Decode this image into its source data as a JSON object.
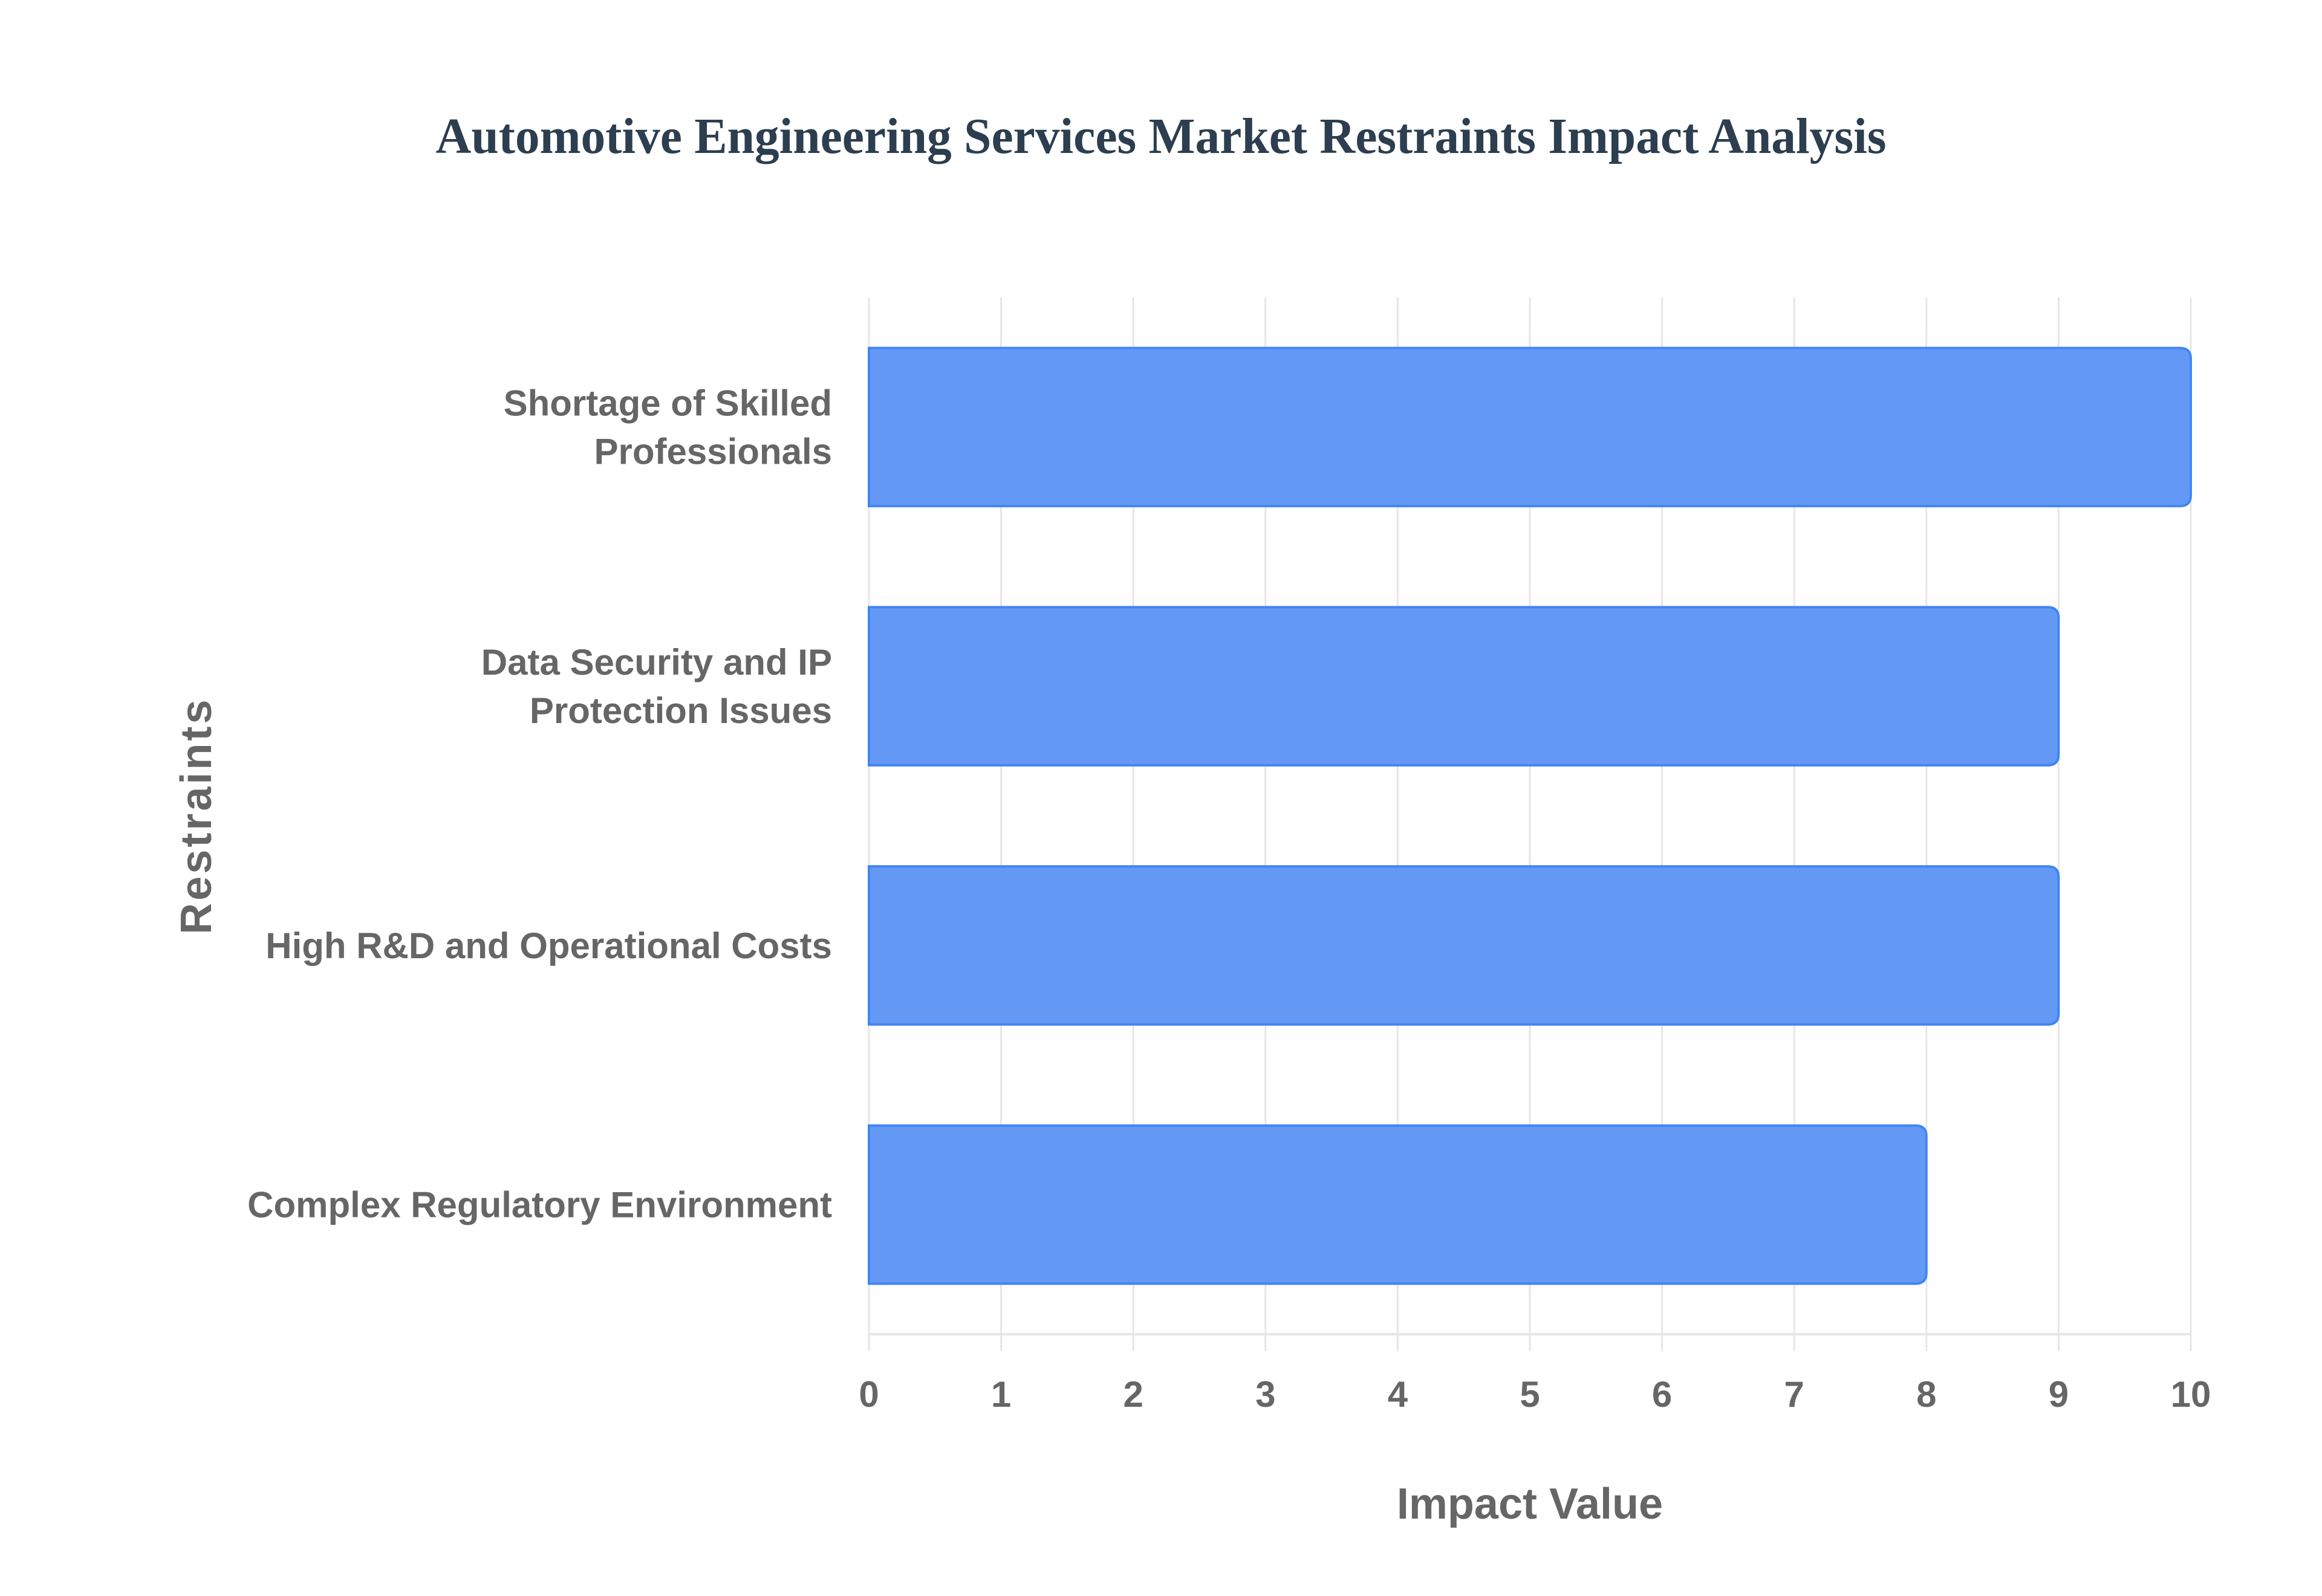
{
  "title": "Automotive Engineering Services Market Restraints Impact Analysis",
  "colors": {
    "bar_fill": "#6399f5",
    "bar_border": "#4285f4",
    "grid": "#e6e6e6",
    "axis_text": "#666666",
    "title": "#2c3e50"
  },
  "chart_data": {
    "type": "bar",
    "orientation": "horizontal",
    "title": "Automotive Engineering Services Market Restraints Impact Analysis",
    "xlabel": "Impact Value",
    "ylabel": "Restraints",
    "categories": [
      "Shortage of Skilled Professionals",
      "Data Security and IP Protection Issues",
      "High R&D and Operational Costs",
      "Complex Regulatory Environment"
    ],
    "category_label_lines": [
      [
        "Shortage of Skilled",
        "Professionals"
      ],
      [
        "Data Security and IP",
        "Protection Issues"
      ],
      [
        "High R&D and Operational Costs"
      ],
      [
        "Complex Regulatory Environment"
      ]
    ],
    "values": [
      10,
      9,
      9,
      8
    ],
    "xlim": [
      0,
      10
    ],
    "x_ticks": [
      "0",
      "1",
      "2",
      "3",
      "4",
      "5",
      "6",
      "7",
      "8",
      "9",
      "10"
    ],
    "grid": true,
    "legend": null
  }
}
